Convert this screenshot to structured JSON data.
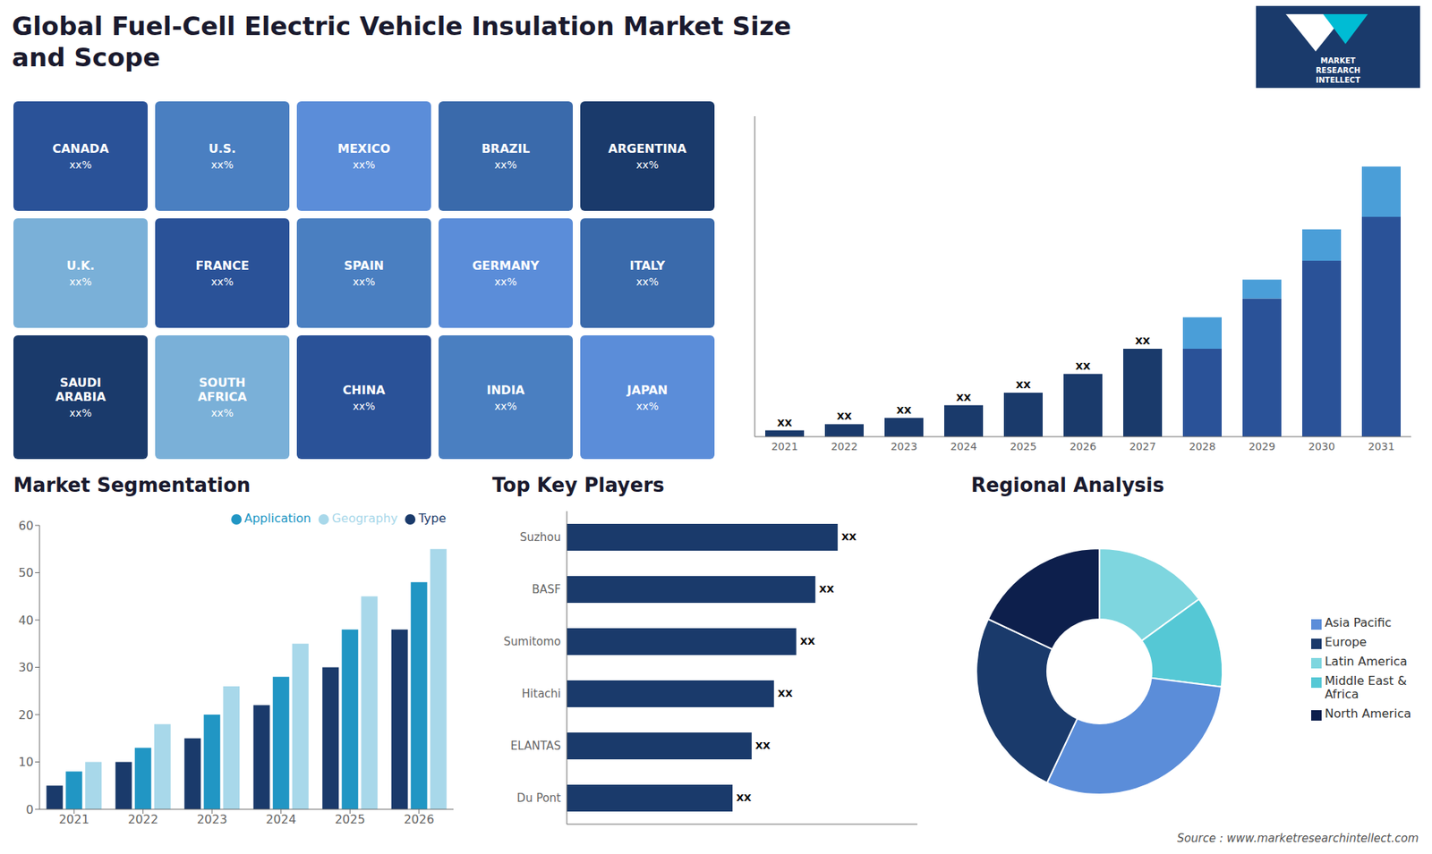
{
  "title": "Global Fuel-Cell Electric Vehicle Insulation Market Size\nand Scope",
  "annotations": [
    "MARKET",
    "RESEARCH",
    "INTELLECT",
    "Source : www.marketresearchintellect.com"
  ],
  "chart_data": [
    {
      "type": "map",
      "categories": [
        "CANADA",
        "U.S.",
        "MEXICO",
        "BRAZIL",
        "ARGENTINA",
        "U.K.",
        "FRANCE",
        "SPAIN",
        "GERMANY",
        "ITALY",
        "SAUDI\nARABIA",
        "SOUTH\nAFRICA",
        "CHINA",
        "INDIA",
        "JAPAN"
      ],
      "annotations": [
        "xx%",
        "xx%",
        "xx%",
        "xx%",
        "xx%",
        "xx%",
        "xx%",
        "xx%",
        "xx%",
        "xx%",
        "xx%",
        "xx%",
        "xx%",
        "xx%",
        "xx%"
      ]
    },
    {
      "type": "bar",
      "categories": [
        "2021",
        "2022",
        "2023",
        "2024",
        "2025",
        "2026",
        "2027",
        "2028",
        "2029",
        "2030",
        "2031"
      ],
      "series": [
        {
          "values": [
            1,
            2,
            3,
            5,
            7,
            10,
            14,
            14,
            22,
            28,
            35
          ],
          "colors": [
            "#1a3a6b",
            "#1a3a6b",
            "#1a3a6b",
            "#1a3a6b",
            "#1a3a6b",
            "#1a3a6b",
            "#1a3a6b",
            "#2a5298",
            "#2a5298",
            "#2a5298",
            "#2a5298"
          ]
        },
        {
          "values": [
            null,
            null,
            null,
            null,
            null,
            null,
            null,
            5,
            3,
            5,
            8
          ],
          "colors": [
            "#1a3a6b",
            "#1a3a6b",
            "#1a3a6b",
            "#1a3a6b",
            "#1a3a6b",
            "#1a3a6b",
            "#1a3a6b",
            "#4a9ed8",
            "#4a9ed8",
            "#4a9ed8",
            "#4a9ed8"
          ]
        }
      ],
      "stacked": true,
      "ylim": [
        0,
        51
      ],
      "tick_labels": "x",
      "annotations": [
        "XX",
        "XX",
        "XX",
        "XX",
        "XX",
        "XX",
        "XX",
        "XX",
        "XX",
        "XX",
        "XX"
      ]
    },
    {
      "type": "bar",
      "title": "Market Segmentation",
      "categories": [
        "2021",
        "2022",
        "2023",
        "2024",
        "2025",
        "2026"
      ],
      "series": [
        {
          "name": "Type",
          "color": "#1a3a6b",
          "values": [
            5,
            10,
            15,
            22,
            30,
            38
          ]
        },
        {
          "name": "Application",
          "color": "#2196c4",
          "values": [
            8,
            13,
            20,
            28,
            38,
            48
          ]
        },
        {
          "name": "Geography",
          "color": "#a8d8ea",
          "values": [
            10,
            18,
            26,
            35,
            45,
            55
          ]
        }
      ],
      "ylim": [
        0,
        60
      ],
      "yticks": [
        0,
        10,
        20,
        30,
        40,
        50,
        60
      ],
      "legend": "upper right"
    },
    {
      "type": "bar",
      "orientation": "horizontal",
      "title": "Top Key Players",
      "categories": [
        "Suzhou",
        "BASF",
        "Sumitomo",
        "Hitachi",
        "ELANTAS",
        "Du Pont"
      ],
      "values": [
        0.85,
        0.78,
        0.72,
        0.65,
        0.58,
        0.52
      ],
      "color": "#1a3a6b",
      "xlim": [
        0,
        1.1
      ],
      "tick_labels": "y",
      "annotations": [
        "XX",
        "XX",
        "XX",
        "XX",
        "XX",
        "XX"
      ]
    },
    {
      "type": "donut",
      "title": "Regional Analysis",
      "categories": [
        "Latin America",
        "Middle East &\nAfrica",
        "Asia Pacific",
        "Europe",
        "North America"
      ],
      "values": [
        15,
        12,
        30,
        25,
        18
      ],
      "colors": [
        "#7ed6df",
        "#55c8d5",
        "#5b8dd9",
        "#1a3a6b",
        "#0d1f4c"
      ],
      "legend": "right"
    }
  ]
}
